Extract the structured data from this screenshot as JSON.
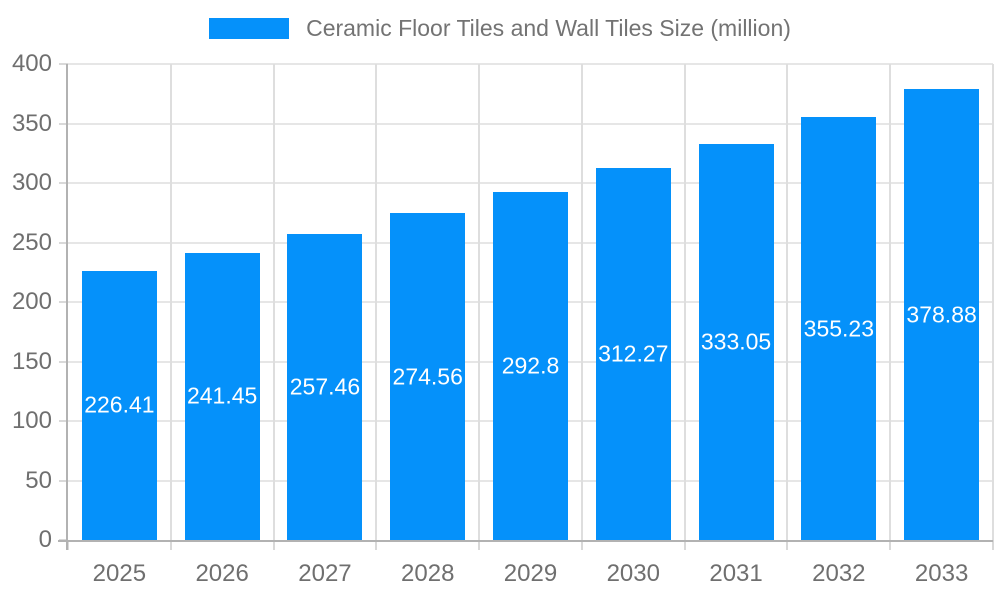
{
  "chart_data": {
    "type": "bar",
    "title": "Ceramic Floor Tiles and Wall Tiles Size (million)",
    "categories": [
      "2025",
      "2026",
      "2027",
      "2028",
      "2029",
      "2030",
      "2031",
      "2032",
      "2033"
    ],
    "values": [
      226.41,
      241.45,
      257.46,
      274.56,
      292.8,
      312.27,
      333.05,
      355.23,
      378.88
    ],
    "xlabel": "",
    "ylabel": "",
    "ylim": [
      0,
      400
    ],
    "yticks": [
      0,
      50,
      100,
      150,
      200,
      250,
      300,
      350,
      400
    ],
    "grid": true,
    "legend_position": "top",
    "bar_color": "#0591fa",
    "value_label_color": "#ffffff",
    "axis_line_color": "#b2b2b2",
    "gridline_color": "#e3e3e3",
    "tick_label_color": "#6f6f6f",
    "title_color": "#737373"
  }
}
